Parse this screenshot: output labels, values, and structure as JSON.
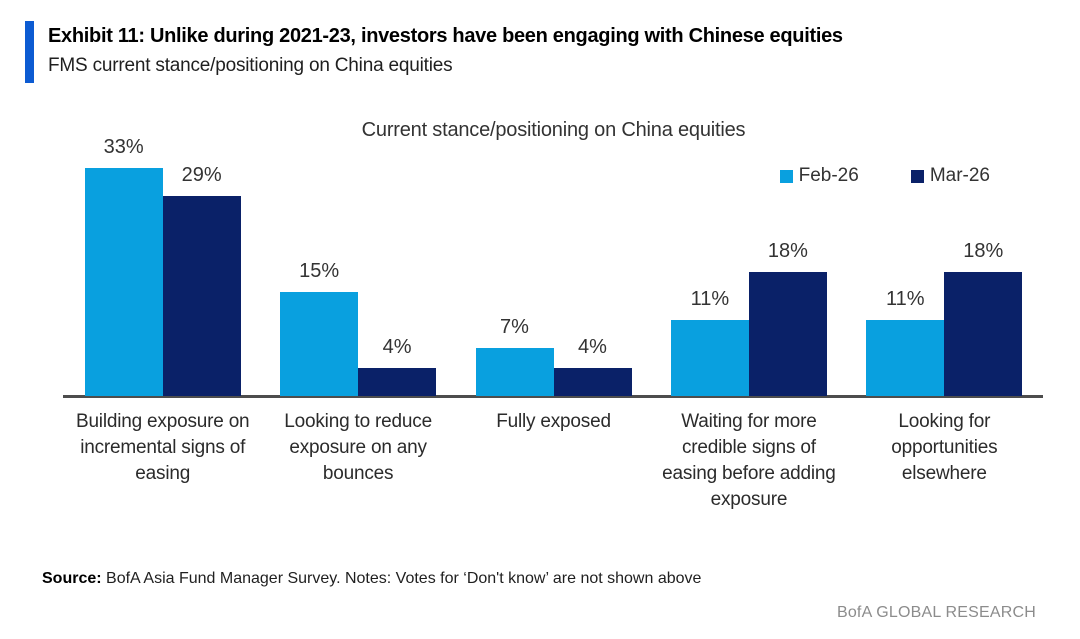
{
  "header": {
    "exhibit_title": "Exhibit 11: Unlike during 2021-23, investors have been engaging with Chinese equities",
    "subtitle": "FMS current stance/positioning on China equities",
    "accent_color": "#0C5BD2"
  },
  "chart_data": {
    "type": "bar",
    "title": "Current stance/positioning on China equities",
    "categories": [
      "Building exposure on incremental signs of easing",
      "Looking to reduce exposure on any bounces",
      "Fully exposed",
      "Waiting for more credible signs of easing before adding exposure",
      "Looking for opportunities elsewhere"
    ],
    "series": [
      {
        "name": "Feb-26",
        "color": "#09A0DF",
        "values": [
          33,
          15,
          7,
          11,
          11
        ]
      },
      {
        "name": "Mar-26",
        "color": "#0A2168",
        "values": [
          29,
          4,
          4,
          18,
          18
        ]
      }
    ],
    "value_suffix": "%",
    "ylim": [
      0,
      35
    ],
    "legend_position": "top-right",
    "grid": false,
    "data_labels": true,
    "axis_color": "#4d4d4d"
  },
  "footer": {
    "source_label": "Source:",
    "source_text": "BofA Asia Fund Manager Survey. Notes: Votes for ‘Don't know’ are not shown above",
    "brand": "BofA GLOBAL RESEARCH"
  }
}
